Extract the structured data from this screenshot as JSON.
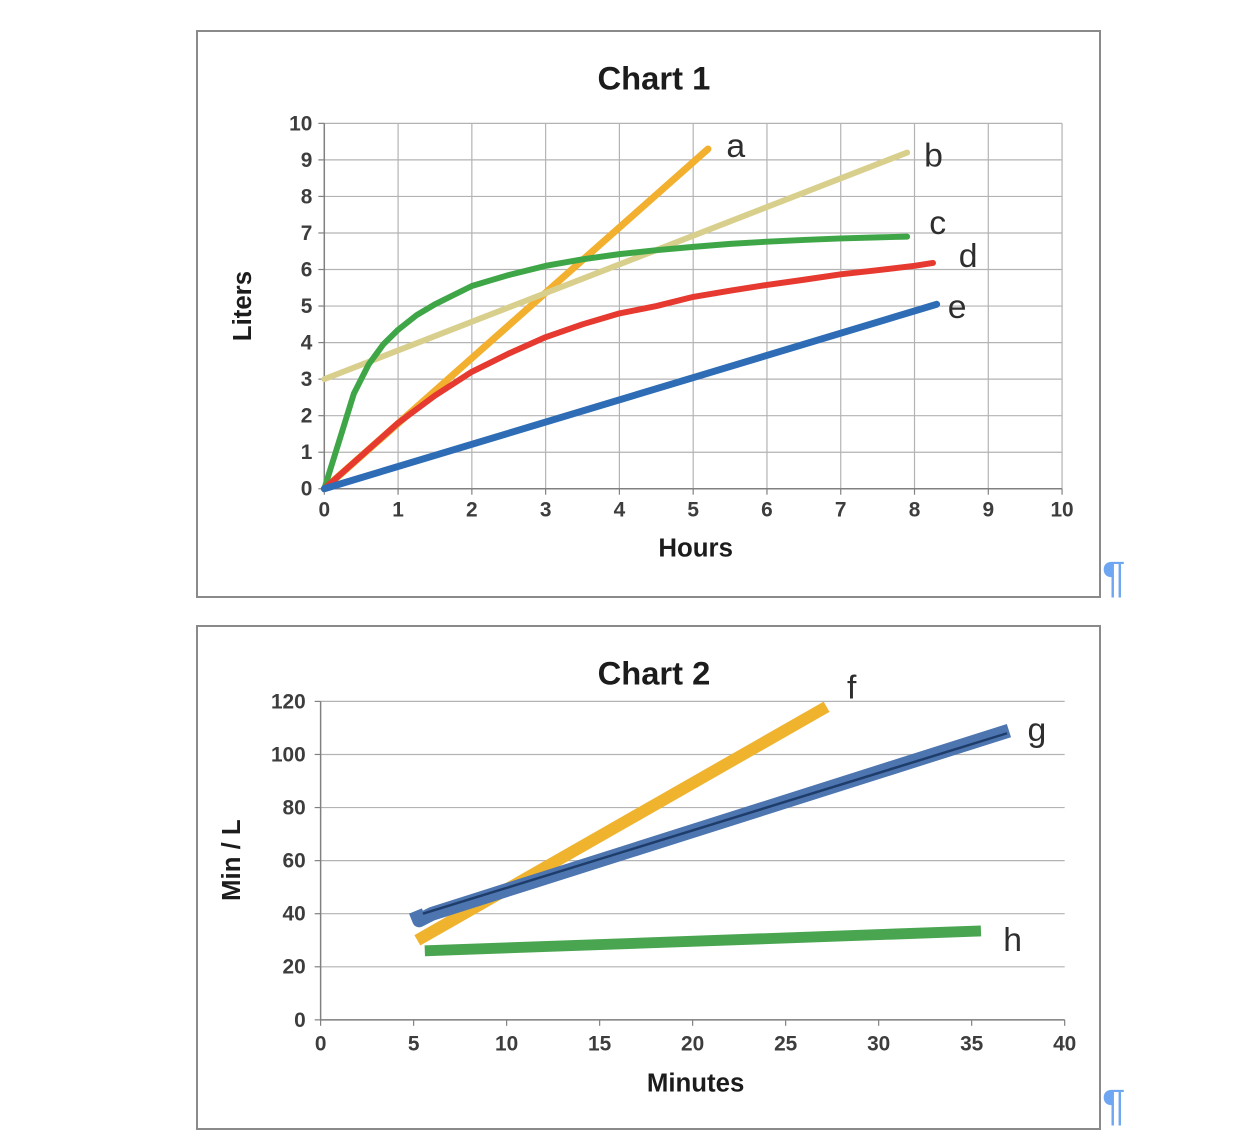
{
  "document": {
    "pilcrow": "¶",
    "pilcrow_color": "#6fa6f2",
    "background": "#ffffff"
  },
  "styles": {
    "grid": "#b3b3b3",
    "axis": "#808080",
    "tick_label": "#3d3d3d",
    "title": "#1c1c1c",
    "series_label": "#2e2e2e",
    "frame_border": "#8a8a8a"
  },
  "chart_data": [
    {
      "id": "chart1",
      "type": "line",
      "title": "Chart 1",
      "xlabel": "Hours",
      "ylabel": "Liters",
      "xlim": [
        0,
        10
      ],
      "ylim": [
        0,
        10
      ],
      "xticks": [
        0,
        1,
        2,
        3,
        4,
        5,
        6,
        7,
        8,
        9,
        10
      ],
      "yticks": [
        0,
        1,
        2,
        3,
        4,
        5,
        6,
        7,
        8,
        9,
        10
      ],
      "grid": {
        "vertical": true,
        "horizontal": true
      },
      "legend": "inline-labels",
      "series": [
        {
          "name": "a",
          "label": "a",
          "label_pos": [
            5.45,
            9.4
          ],
          "color": "#f2b02e",
          "width": 7,
          "points": [
            [
              0,
              0
            ],
            [
              5.2,
              9.3
            ]
          ]
        },
        {
          "name": "b",
          "label": "b",
          "label_pos": [
            8.13,
            9.15
          ],
          "color": "#d9cf8c",
          "width": 6,
          "points": [
            [
              0,
              3
            ],
            [
              7.9,
              9.2
            ]
          ]
        },
        {
          "name": "c",
          "label": "c",
          "label_pos": [
            8.2,
            7.3
          ],
          "color": "#3fa648",
          "width": 6,
          "points": [
            [
              0,
              0
            ],
            [
              0.2,
              1.3
            ],
            [
              0.4,
              2.6
            ],
            [
              0.6,
              3.4
            ],
            [
              0.8,
              3.95
            ],
            [
              1,
              4.35
            ],
            [
              1.25,
              4.75
            ],
            [
              1.5,
              5.05
            ],
            [
              1.75,
              5.3
            ],
            [
              2,
              5.55
            ],
            [
              2.25,
              5.7
            ],
            [
              2.5,
              5.85
            ],
            [
              3,
              6.1
            ],
            [
              3.5,
              6.28
            ],
            [
              4,
              6.42
            ],
            [
              4.5,
              6.53
            ],
            [
              5,
              6.62
            ],
            [
              5.5,
              6.7
            ],
            [
              6,
              6.76
            ],
            [
              6.5,
              6.81
            ],
            [
              7,
              6.85
            ],
            [
              7.5,
              6.88
            ],
            [
              7.9,
              6.9
            ]
          ]
        },
        {
          "name": "d",
          "label": "d",
          "label_pos": [
            8.6,
            6.4
          ],
          "color": "#e6392f",
          "width": 6,
          "points": [
            [
              0,
              0
            ],
            [
              0.5,
              0.9
            ],
            [
              1,
              1.8
            ],
            [
              1.5,
              2.55
            ],
            [
              2,
              3.2
            ],
            [
              2.5,
              3.7
            ],
            [
              3,
              4.15
            ],
            [
              3.5,
              4.5
            ],
            [
              4,
              4.8
            ],
            [
              4.5,
              5.0
            ],
            [
              5,
              5.25
            ],
            [
              5.5,
              5.42
            ],
            [
              6,
              5.58
            ],
            [
              6.5,
              5.72
            ],
            [
              7,
              5.87
            ],
            [
              7.5,
              5.98
            ],
            [
              8,
              6.1
            ],
            [
              8.25,
              6.18
            ]
          ]
        },
        {
          "name": "e",
          "label": "e",
          "label_pos": [
            8.45,
            5.0
          ],
          "color": "#2e6db6",
          "width": 7,
          "points": [
            [
              0,
              0
            ],
            [
              8.3,
              5.05
            ]
          ]
        }
      ]
    },
    {
      "id": "chart2",
      "type": "line",
      "title": "Chart 2",
      "xlabel": "Minutes",
      "ylabel": "Min / L",
      "xlim": [
        0,
        40
      ],
      "ylim": [
        0,
        120
      ],
      "xticks": [
        0,
        5,
        10,
        15,
        20,
        25,
        30,
        35,
        40
      ],
      "yticks": [
        0,
        20,
        40,
        60,
        80,
        100,
        120
      ],
      "grid": {
        "vertical": false,
        "horizontal": true
      },
      "legend": "inline-labels",
      "series": [
        {
          "name": "f",
          "label": "f",
          "label_pos": [
            28.3,
            125.5
          ],
          "color": "#f0b32e",
          "width": 12,
          "cap": "butt",
          "points": [
            [
              5.2,
              30
            ],
            [
              27.2,
              118
            ]
          ]
        },
        {
          "name": "g",
          "label": "g",
          "label_pos": [
            38.0,
            109.5
          ],
          "color": "#4d75b0",
          "width": 14,
          "cap": "butt",
          "points": [
            [
              5.1,
              41
            ],
            [
              5.3,
              37.5
            ],
            [
              6.0,
              40
            ],
            [
              37,
              109
            ]
          ]
        },
        {
          "name": "g-trendline",
          "label": "",
          "label_pos": [
            0,
            0
          ],
          "color": "#1e3d6b",
          "width": 2.5,
          "cap": "butt",
          "points": [
            [
              5.5,
              40
            ],
            [
              36.9,
              108
            ]
          ]
        },
        {
          "name": "h",
          "label": "h",
          "label_pos": [
            36.7,
            30.5
          ],
          "color": "#4aa551",
          "width": 11,
          "cap": "butt",
          "points": [
            [
              5.6,
              26
            ],
            [
              35.5,
              33.5
            ]
          ]
        }
      ]
    }
  ]
}
